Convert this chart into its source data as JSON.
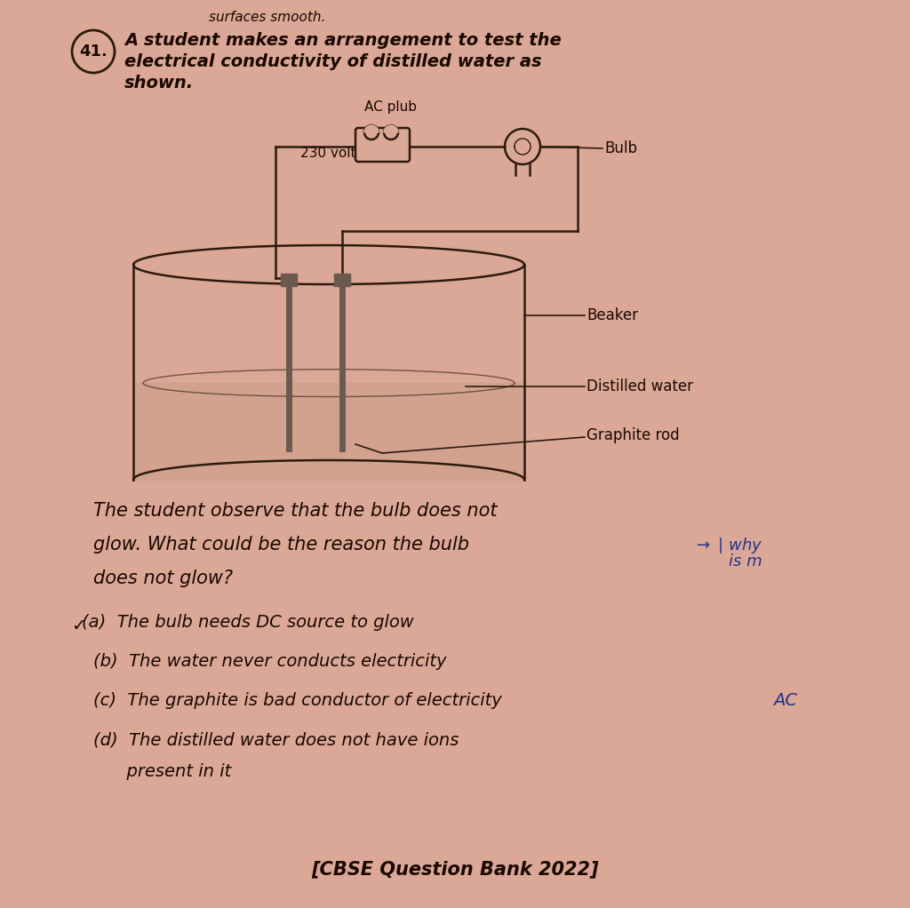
{
  "bg_color": "#dba898",
  "title_text": "surfaces smooth.",
  "q_text1": "A student makes an arrangement to test the",
  "q_text2": "electrical conductivity of distilled water as",
  "q_text3": "shown.",
  "label_ac": "AC plub",
  "label_230": "230 volt",
  "label_bulb": "Bulb",
  "label_beaker": "Beaker",
  "label_distilled": "Distilled water",
  "label_graphite": "Graphite rod",
  "para1": "The student observe that the bulb does not",
  "para2": "glow. What could be the reason the bulb",
  "para3": "does not glow?",
  "opt_a": "(a)  The bulb needs DC source to glow",
  "opt_b": "(b)  The water never conducts electricity",
  "opt_c": "(c)  The graphite is bad conductor of electricity",
  "opt_d": "(d)  The distilled water does not have ions",
  "opt_d2": "      present in it",
  "footer": "[CBSE Question Bank 2022]",
  "line_color": "#2d1a0e",
  "water_color": "#c49880",
  "rod_color": "#6a5a50",
  "text_color": "#1a0800"
}
